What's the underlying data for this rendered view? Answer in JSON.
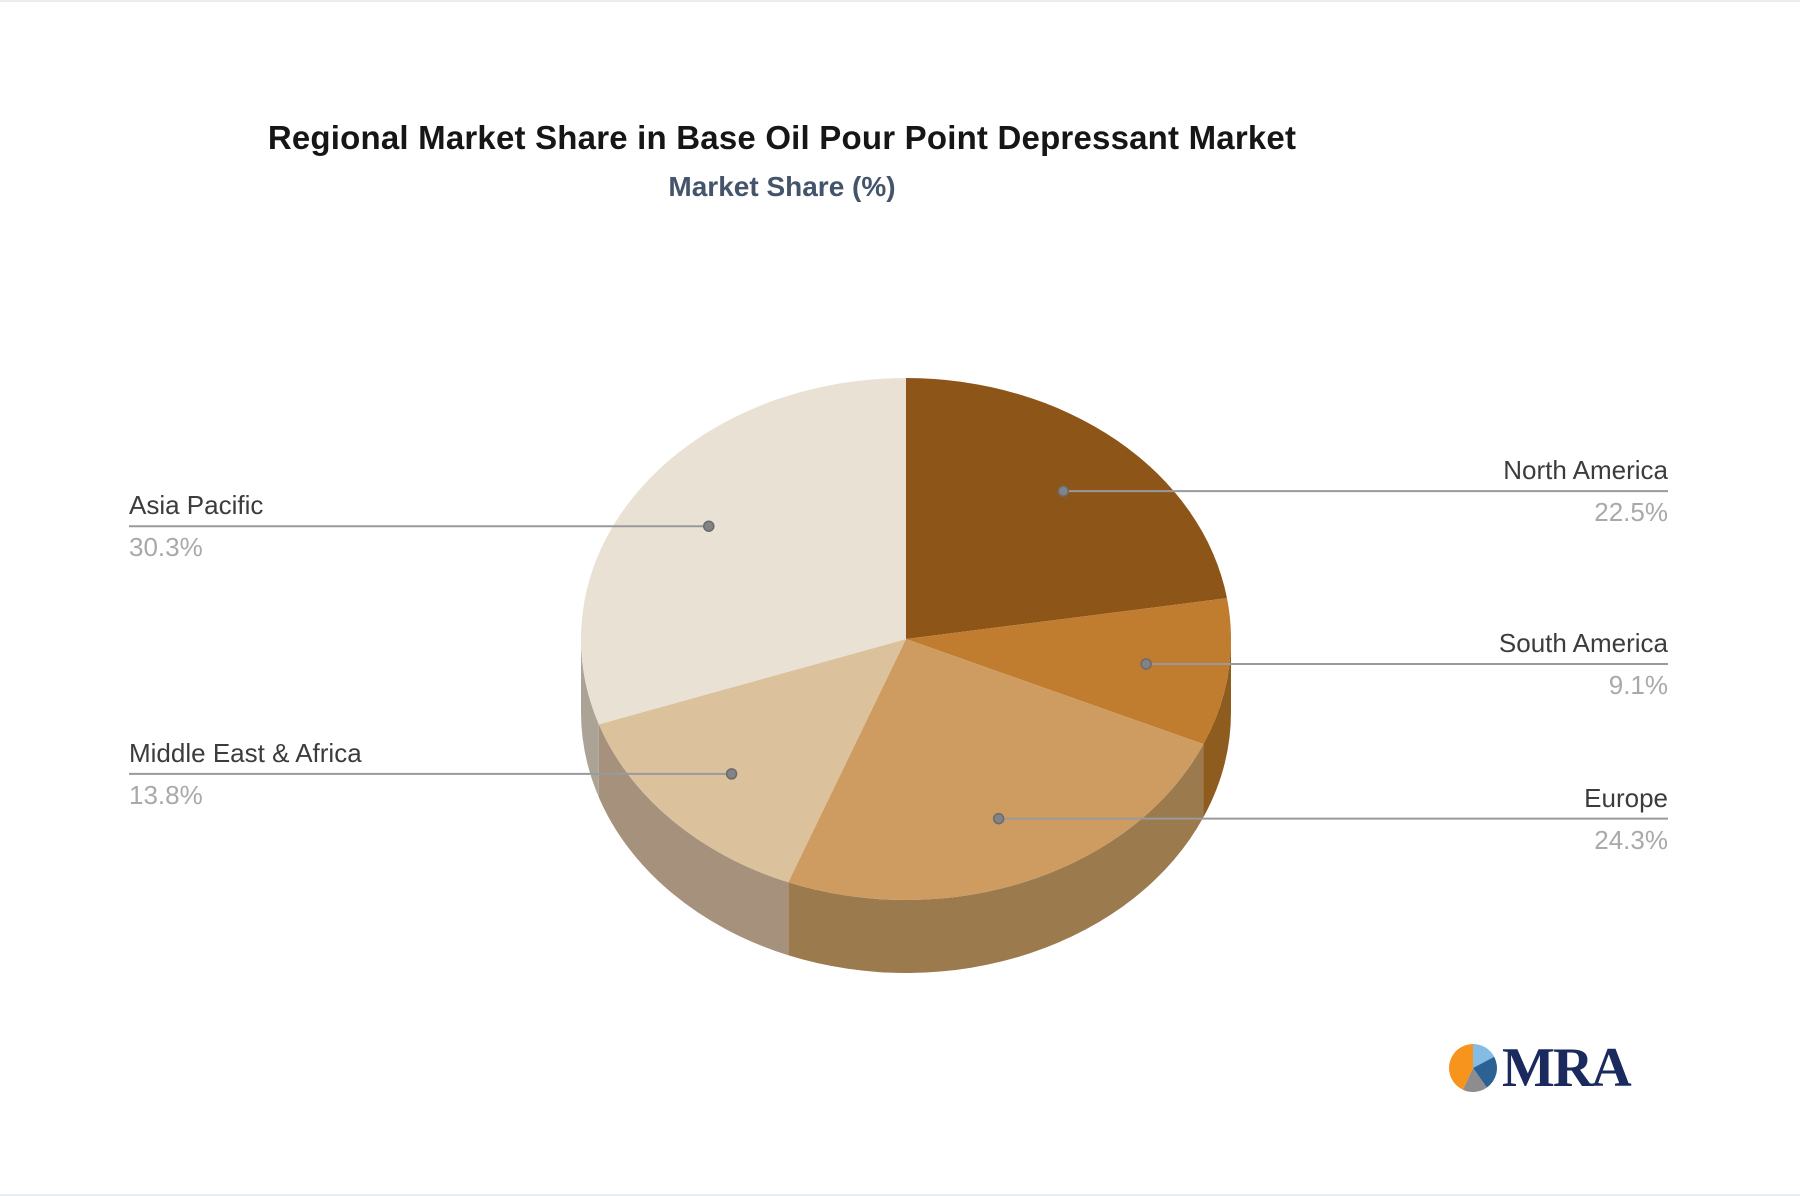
{
  "header": {
    "title": "Regional Market Share in Base Oil Pour Point Depressant Market",
    "subtitle": "Market Share (%)"
  },
  "chart_data": {
    "type": "pie",
    "style": "3d",
    "title": "Regional Market Share in Base Oil Pour Point Depressant Market",
    "subtitle": "Market Share (%)",
    "units": "%",
    "start_angle_deg": 0,
    "direction": "clockwise",
    "legend_position": "callout-labels",
    "slices": [
      {
        "label": "North America",
        "value": 22.5,
        "color": "#8D5618",
        "side_color": "#764818",
        "label_side": "right"
      },
      {
        "label": "South America",
        "value": 9.1,
        "color": "#C07C2F",
        "side_color": "#8F5C20",
        "label_side": "right"
      },
      {
        "label": "Europe",
        "value": 24.3,
        "color": "#CE9C60",
        "side_color": "#9B7A4E",
        "label_side": "right"
      },
      {
        "label": "Middle East & Africa",
        "value": 13.8,
        "color": "#DBC29D",
        "side_color": "#A6927C",
        "label_side": "left"
      },
      {
        "label": "Asia Pacific",
        "value": 30.3,
        "color": "#EAE1D5",
        "side_color": "#ABA396",
        "label_side": "left"
      }
    ],
    "callout": {
      "line_color": "#999a9c",
      "dot_color": "#828386",
      "name_color": "#3c3c3c",
      "value_color": "#a9a9a9"
    }
  },
  "logo": {
    "text": "MRA",
    "text_color": "#1b2a5e",
    "segments": [
      {
        "name": "light-blue",
        "color": "#85BCE3",
        "from": 0,
        "to": 62
      },
      {
        "name": "dark-blue",
        "color": "#2C6293",
        "from": 62,
        "to": 145
      },
      {
        "name": "gray",
        "color": "#8D8D8D",
        "from": 145,
        "to": 205
      },
      {
        "name": "orange",
        "color": "#F6941D",
        "from": 205,
        "to": 360
      }
    ]
  }
}
